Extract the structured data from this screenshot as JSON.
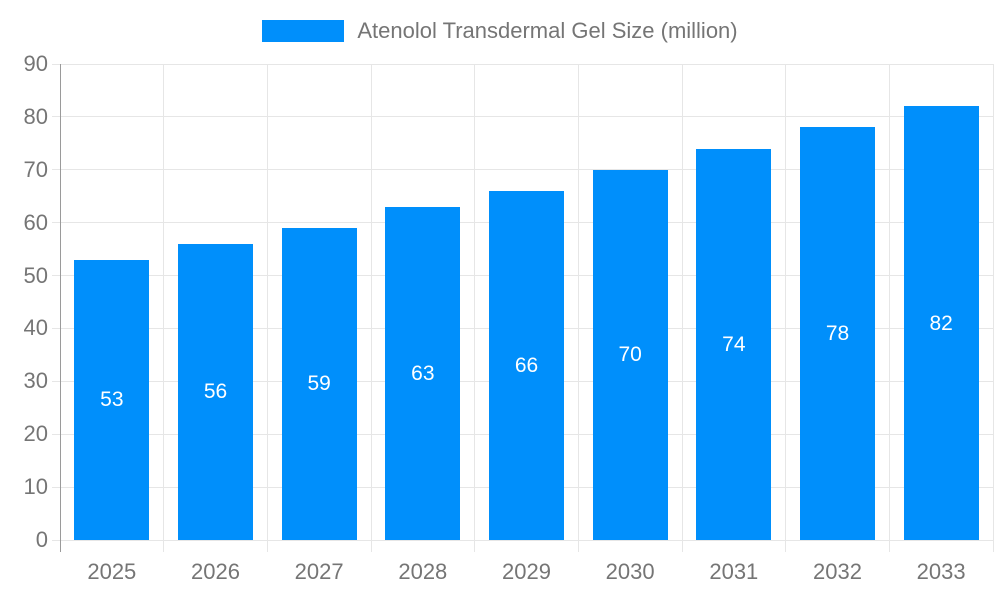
{
  "legend": {
    "label": "Atenolol Transdermal Gel Size (million)"
  },
  "chart_data": {
    "type": "bar",
    "title": "Atenolol Transdermal Gel Size (million)",
    "categories": [
      "2025",
      "2026",
      "2027",
      "2028",
      "2029",
      "2030",
      "2031",
      "2032",
      "2033"
    ],
    "values": [
      53,
      56,
      59,
      63,
      66,
      70,
      74,
      78,
      82
    ],
    "xlabel": "",
    "ylabel": "",
    "ylim": [
      0,
      90
    ],
    "ytick_step": 10,
    "yticks": [
      0,
      10,
      20,
      30,
      40,
      50,
      60,
      70,
      80,
      90
    ],
    "grid": "horizontal-and-vertical",
    "legend_position": "top",
    "value_labels": "centered-inside-bars",
    "colors": {
      "bar": "#008FFB",
      "axis_label": "#757575",
      "value_label": "#ffffff",
      "gridline": "#e6e6e6",
      "axis_line": "#9a9a9a",
      "background": "#ffffff"
    }
  }
}
